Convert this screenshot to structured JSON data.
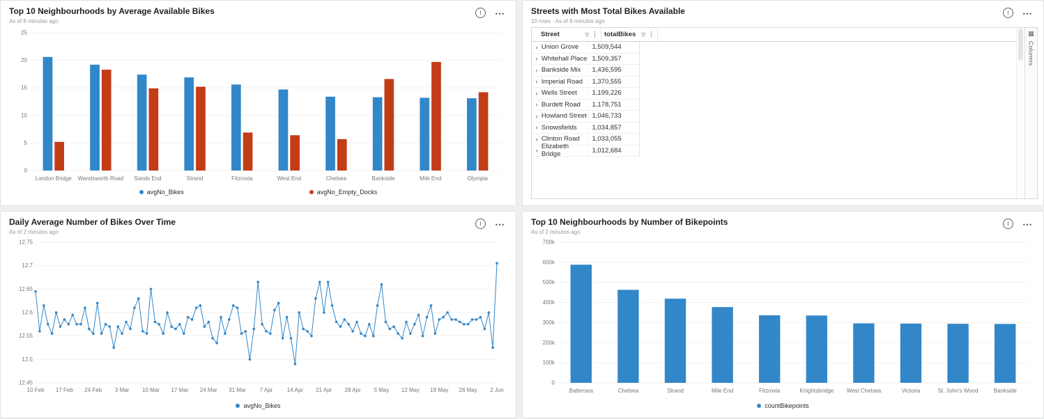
{
  "colors": {
    "blue": "#3287c9",
    "orange": "#c23d17",
    "axis_text": "#767676",
    "grid": "#f1f1f1"
  },
  "icons": {
    "info": "i",
    "more": "⋯",
    "filter": "▽",
    "kebab": "⋮",
    "chevron": "›",
    "columns": "▦"
  },
  "panels": {
    "avg_bikes": {
      "title": "Top 10 Neighbourhoods by Average Available Bikes",
      "as_of": "As of 8 minutes ago"
    },
    "streets": {
      "title": "Streets with Most Total Bikes Available",
      "as_of": "10 rows · As of 8 minutes ago",
      "columns_pane": "Columns",
      "table": {
        "columns": [
          "Street",
          "totalBikes"
        ],
        "rows": [
          [
            "Union Grove",
            "1,509,544"
          ],
          [
            "Whitehall Place",
            "1,509,357"
          ],
          [
            "Bankside Mix",
            "1,436,595"
          ],
          [
            "Imperial Road",
            "1,370,555"
          ],
          [
            "Wells Street",
            "1,199,226"
          ],
          [
            "Burdett Road",
            "1,178,751"
          ],
          [
            "Howland Street",
            "1,046,733"
          ],
          [
            "Snowsfields",
            "1,034,857"
          ],
          [
            "Clinton Road",
            "1,033,055"
          ],
          [
            "Elizabeth Bridge",
            "1,012,684"
          ]
        ]
      }
    },
    "daily_avg": {
      "title": "Daily Average Number of Bikes Over Time",
      "as_of": "As of 2 minutes ago"
    },
    "bikepoints": {
      "title": "Top 10 Neighbourhoods by Number of Bikepoints",
      "as_of": "As of 2 minutes ago"
    }
  },
  "chart_data": [
    {
      "id": "avg_bikes",
      "type": "bar",
      "title": "Top 10 Neighbourhoods by Average Available Bikes",
      "xlabel": "",
      "ylabel": "",
      "legend_position": "bottom",
      "categories": [
        "London Bridge",
        "Wandsworth Road",
        "Sands End",
        "Strand",
        "Fitzrovia",
        "West End",
        "Chelsea",
        "Bankside",
        "Mile End",
        "Olympia"
      ],
      "series": [
        {
          "name": "avgNo_Bikes",
          "color": "#3287c9",
          "values": [
            20.6,
            19.2,
            17.4,
            16.9,
            15.6,
            14.7,
            13.4,
            13.3,
            13.2,
            13.1
          ]
        },
        {
          "name": "avgNo_Empty_Docks",
          "color": "#c23d17",
          "values": [
            5.2,
            18.3,
            14.9,
            15.2,
            6.9,
            6.4,
            5.7,
            16.6,
            19.7,
            14.2
          ]
        }
      ],
      "ylim": [
        0,
        25
      ],
      "yticks": [
        0,
        5,
        10,
        15,
        20,
        25
      ],
      "ytick_labels": [
        "0",
        "5",
        "10",
        "15",
        "20",
        "25"
      ]
    },
    {
      "id": "daily_avg",
      "type": "line",
      "title": "Daily Average Number of Bikes Over Time",
      "xlabel": "",
      "ylabel": "",
      "legend_position": "bottom",
      "x_ticks": [
        "10 Feb",
        "17 Feb",
        "24 Feb",
        "3 Mar",
        "10 Mar",
        "17 Mar",
        "24 Mar",
        "31 Mar",
        "7 Apr",
        "14 Apr",
        "21 Apr",
        "28 Apr",
        "5 May",
        "12 May",
        "19 May",
        "26 May",
        "2 Jun"
      ],
      "tick_every": 7,
      "series": [
        {
          "name": "avgNo_Bikes",
          "color": "#3287c9",
          "values": [
            12.645,
            12.56,
            12.615,
            12.575,
            12.555,
            12.6,
            12.57,
            12.585,
            12.575,
            12.595,
            12.575,
            12.575,
            12.61,
            12.565,
            12.555,
            12.62,
            12.555,
            12.575,
            12.57,
            12.525,
            12.57,
            12.555,
            12.58,
            12.565,
            12.61,
            12.63,
            12.56,
            12.555,
            12.65,
            12.58,
            12.575,
            12.555,
            12.6,
            12.57,
            12.565,
            12.575,
            12.555,
            12.59,
            12.585,
            12.61,
            12.615,
            12.57,
            12.58,
            12.545,
            12.535,
            12.59,
            12.555,
            12.585,
            12.615,
            12.61,
            12.555,
            12.56,
            12.5,
            12.565,
            12.665,
            12.575,
            12.56,
            12.555,
            12.605,
            12.62,
            12.545,
            12.59,
            12.545,
            12.49,
            12.6,
            12.565,
            12.56,
            12.55,
            12.63,
            12.665,
            12.6,
            12.665,
            12.615,
            12.58,
            12.57,
            12.585,
            12.575,
            12.56,
            12.58,
            12.555,
            12.55,
            12.575,
            12.55,
            12.615,
            12.66,
            12.58,
            12.565,
            12.57,
            12.555,
            12.545,
            12.58,
            12.555,
            12.575,
            12.595,
            12.55,
            12.59,
            12.615,
            12.555,
            12.585,
            12.59,
            12.6,
            12.585,
            12.585,
            12.58,
            12.575,
            12.575,
            12.585,
            12.585,
            12.59,
            12.565,
            12.6,
            12.525,
            12.705
          ]
        }
      ],
      "ylim": [
        12.45,
        12.75
      ],
      "yticks": [
        12.45,
        12.5,
        12.55,
        12.6,
        12.65,
        12.7,
        12.75
      ],
      "ytick_labels": [
        "12.45",
        "12.5",
        "12.55",
        "12.6",
        "12.65",
        "12.7",
        "12.75"
      ]
    },
    {
      "id": "bikepoints",
      "type": "bar",
      "title": "Top 10 Neighbourhoods by Number of Bikepoints",
      "xlabel": "",
      "ylabel": "",
      "legend_position": "bottom",
      "categories": [
        "Battersea",
        "Chelsea",
        "Strand",
        "Mile End",
        "Fitzrovia",
        "Knightsbridge",
        "West Chelsea",
        "Victoria",
        "St. John's Wood",
        "Bankside"
      ],
      "series": [
        {
          "name": "countBikepoints",
          "color": "#3287c9",
          "values": [
            588000,
            463000,
            419000,
            377000,
            336000,
            335000,
            296000,
            295000,
            294000,
            293000
          ]
        }
      ],
      "ylim": [
        0,
        700000
      ],
      "yticks": [
        0,
        100000,
        200000,
        300000,
        400000,
        500000,
        600000,
        700000
      ],
      "ytick_labels": [
        "0",
        "100k",
        "200k",
        "300k",
        "400k",
        "500k",
        "600k",
        "700k"
      ]
    }
  ]
}
